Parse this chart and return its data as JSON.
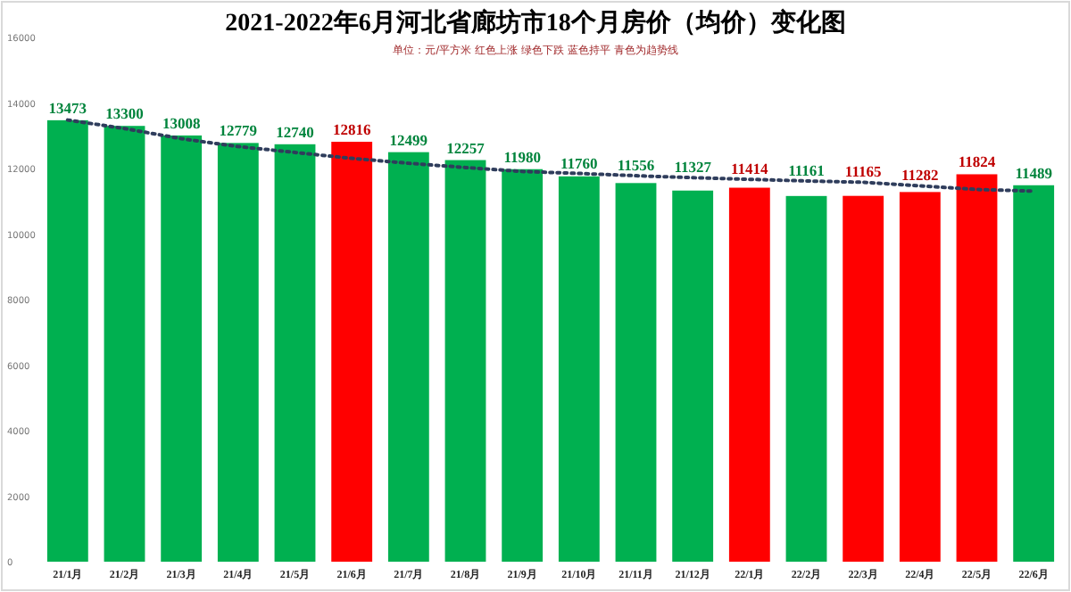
{
  "chart_data": {
    "type": "bar",
    "title": "2021-2022年6月河北省廊坊市18个月房价（均价）变化图",
    "annotations": [
      "单位：元/平方米   红色上涨   绿色下跌   蓝色持平   青色为趋势线"
    ],
    "categories": [
      "21/1月",
      "21/2月",
      "21/3月",
      "21/4月",
      "21/5月",
      "21/6月",
      "21/7月",
      "21/8月",
      "21/9月",
      "21/10月",
      "21/11月",
      "21/12月",
      "22/1月",
      "22/2月",
      "22/3月",
      "22/4月",
      "22/5月",
      "22/6月"
    ],
    "series": [
      {
        "values": [
          13473,
          13300,
          13008,
          12779,
          12740,
          12816,
          12499,
          12257,
          11980,
          11760,
          11556,
          11327,
          11414,
          11161,
          11165,
          11282,
          11824,
          11489
        ],
        "value_labels": [
          "13473",
          "13300",
          "13008",
          "12779",
          "12740",
          "12816",
          "12499",
          "12257",
          "11980",
          "11760",
          "11556",
          "11327",
          "11414",
          "11161",
          "11165",
          "11282",
          "11824",
          "11489"
        ],
        "colors": [
          "#00b050",
          "#00b050",
          "#00b050",
          "#00b050",
          "#00b050",
          "#ff0000",
          "#00b050",
          "#00b050",
          "#00b050",
          "#00b050",
          "#00b050",
          "#00b050",
          "#ff0000",
          "#00b050",
          "#ff0000",
          "#ff0000",
          "#ff0000",
          "#00b050"
        ]
      },
      {
        "type": "line",
        "color": "#2f3d5c",
        "line_style": "dotted",
        "values": [
          13480,
          13220,
          12910,
          12670,
          12490,
          12310,
          12160,
          12030,
          11910,
          11850,
          11780,
          11720,
          11670,
          11620,
          11580,
          11470,
          11360,
          11310
        ]
      }
    ],
    "ylim": [
      0,
      16000
    ],
    "yticks": [
      0,
      2000,
      4000,
      6000,
      8000,
      10000,
      12000,
      14000,
      16000
    ],
    "grid": false
  }
}
